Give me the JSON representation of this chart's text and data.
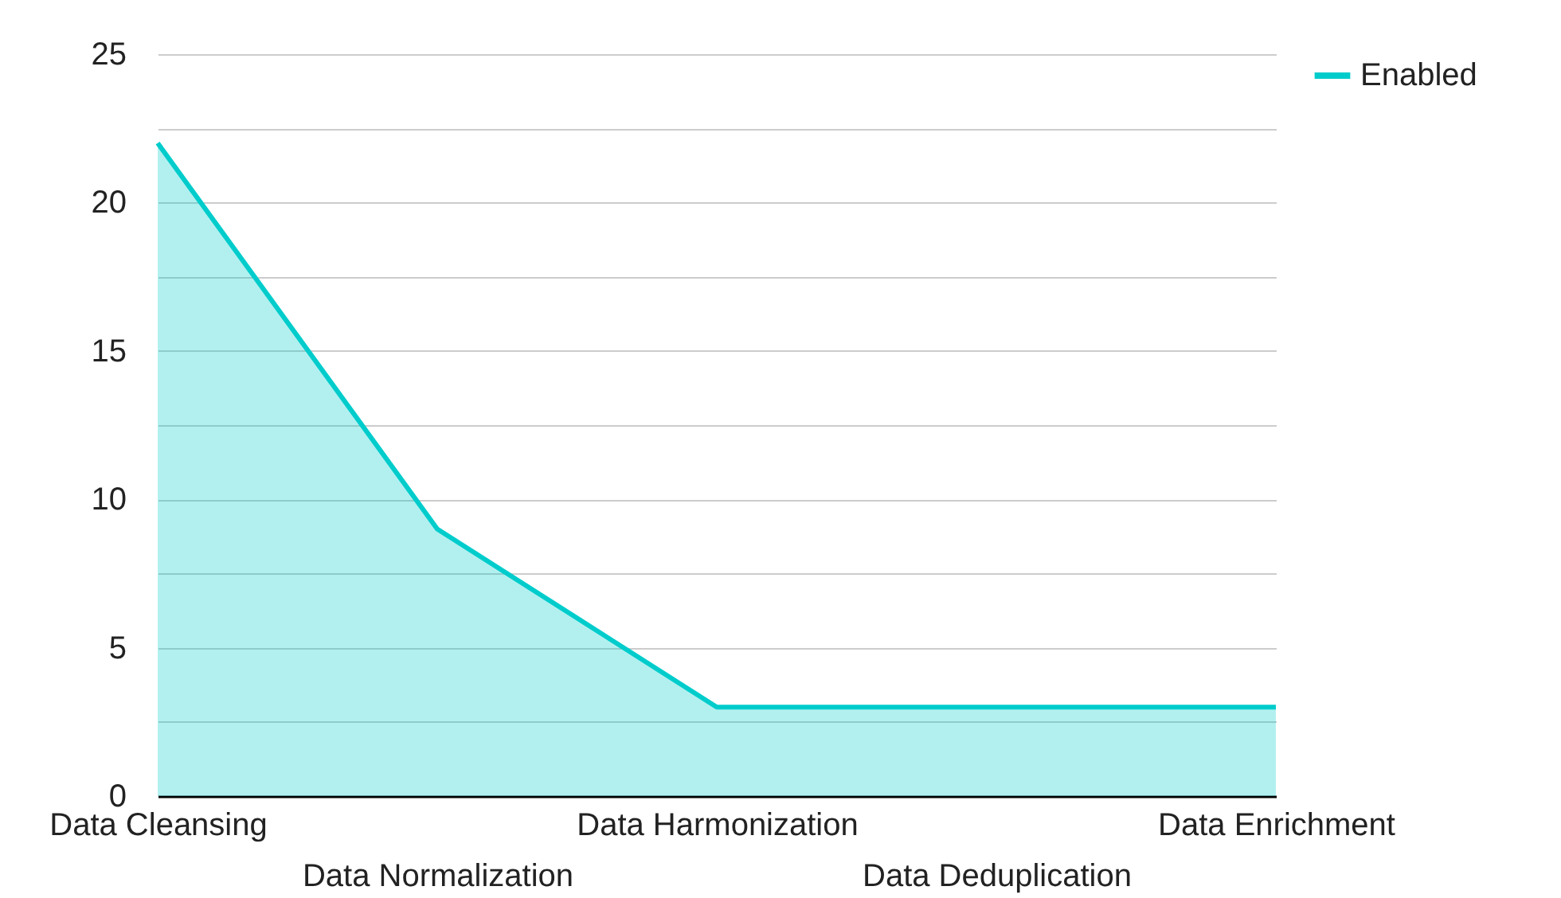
{
  "chart_data": {
    "type": "area",
    "categories": [
      "Data Cleansing",
      "Data Normalization",
      "Data Harmonization",
      "Data Deduplication",
      "Data Enrichment"
    ],
    "series": [
      {
        "name": "Enabled",
        "color": "#00cccc",
        "values": [
          22,
          9,
          3,
          3,
          3
        ]
      }
    ],
    "ylim": [
      0,
      25
    ],
    "yticks": [
      0,
      {
        "value": 2.5,
        "label": null
      },
      5,
      {
        "value": 7.5,
        "label": null
      },
      10,
      {
        "value": 12.5,
        "label": null
      },
      15,
      {
        "value": 17.5,
        "label": null
      },
      20,
      {
        "value": 22.5,
        "label": null
      },
      25
    ],
    "grid": "y",
    "legend": "top right"
  }
}
